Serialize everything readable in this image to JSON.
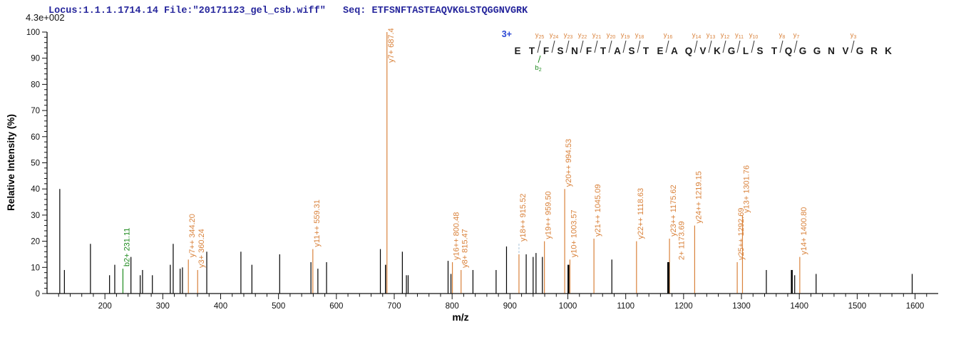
{
  "header": {
    "locus_file": "Locus:1.1.1.1714.14 File:\"20171123_gel_csb.wiff\"",
    "seq_label": "Seq:",
    "seq_value": "ETFSNFTASTEAQVKGLSTQGGNVGRK",
    "max_intensity": "4.3e+002"
  },
  "colors": {
    "annotation_orange": "#d9823b",
    "annotation_green": "#1e8a1e",
    "header_navy": "#26269c",
    "charge_blue": "#2a46d4",
    "peak_black": "#000000",
    "leader_blue": "#a9c3d9",
    "axis_black": "#111111",
    "residue_dark": "#1c1c1c"
  },
  "chart_data": {
    "type": "bar",
    "subtype": "ms2-fragment-spectrum",
    "xlabel": "m/z",
    "ylabel": "Relative  Intensity (%)",
    "xlim": [
      100,
      1640
    ],
    "ylim": [
      0,
      100
    ],
    "x_ticks": {
      "start": 200,
      "end": 1600,
      "step": 100,
      "minor_step": 20
    },
    "y_ticks": {
      "start": 0,
      "end": 100,
      "step": 10,
      "minor_step": 2
    },
    "grid": false,
    "annotated_peaks": [
      {
        "label": "b2+ 231.11",
        "mz": 231.11,
        "pct": 9.5,
        "color": "green"
      },
      {
        "label": "y7++ 344.20",
        "mz": 344.2,
        "pct": 13,
        "color": "orange"
      },
      {
        "label": "y3+ 360.24",
        "mz": 360.24,
        "pct": 9,
        "color": "orange"
      },
      {
        "label": "y11++ 559.31",
        "mz": 559.31,
        "pct": 17,
        "color": "orange"
      },
      {
        "label": "y7+ 687.4",
        "mz": 687.4,
        "pct": 100,
        "color": "orange",
        "base_peak": true
      },
      {
        "label": "y16++ 800.48",
        "mz": 800.48,
        "pct": 12,
        "color": "orange"
      },
      {
        "label": "y8+ 815.47",
        "mz": 815.47,
        "pct": 9,
        "color": "orange"
      },
      {
        "label": "y18++ 915.52",
        "mz": 915.52,
        "pct": 15,
        "color": "orange",
        "leader": 16
      },
      {
        "label": "y19++ 959.50",
        "mz": 959.5,
        "pct": 20,
        "color": "orange"
      },
      {
        "label": "y20++ 994.53",
        "mz": 994.53,
        "pct": 40,
        "color": "orange"
      },
      {
        "label": "y10+ 1003.57",
        "mz": 1003.57,
        "pct": 13,
        "color": "orange"
      },
      {
        "label": "y21++ 1045.09",
        "mz": 1045.09,
        "pct": 21,
        "color": "orange"
      },
      {
        "label": "y22++ 1118.63",
        "mz": 1118.63,
        "pct": 20,
        "color": "orange"
      },
      {
        "label": "y23++ 1175.62",
        "mz": 1175.62,
        "pct": 21,
        "color": "orange"
      },
      {
        "label": "2+ 1173.69",
        "mz": 1173.69,
        "pct": 12,
        "color": "orange",
        "peak_color": "black",
        "w": 3,
        "label_dx": 22
      },
      {
        "label": "y24++ 1219.15",
        "mz": 1219.15,
        "pct": 26,
        "color": "orange"
      },
      {
        "label": "y25++ 1292.69",
        "mz": 1292.69,
        "pct": 12,
        "color": "orange"
      },
      {
        "label": "y13+ 1301.76",
        "mz": 1301.76,
        "pct": 30,
        "color": "orange"
      },
      {
        "label": "y14+ 1400.80",
        "mz": 1400.8,
        "pct": 14,
        "color": "orange"
      }
    ],
    "unlabeled_peaks": [
      {
        "mz": 122,
        "pct": 40
      },
      {
        "mz": 130,
        "pct": 9
      },
      {
        "mz": 175,
        "pct": 19
      },
      {
        "mz": 208,
        "pct": 7
      },
      {
        "mz": 217,
        "pct": 11
      },
      {
        "mz": 245,
        "pct": 14
      },
      {
        "mz": 261,
        "pct": 7
      },
      {
        "mz": 265,
        "pct": 9
      },
      {
        "mz": 282,
        "pct": 7
      },
      {
        "mz": 313,
        "pct": 11
      },
      {
        "mz": 318,
        "pct": 19
      },
      {
        "mz": 330,
        "pct": 9.5
      },
      {
        "mz": 334,
        "pct": 10
      },
      {
        "mz": 376,
        "pct": 16
      },
      {
        "mz": 435,
        "pct": 16
      },
      {
        "mz": 454,
        "pct": 11
      },
      {
        "mz": 502,
        "pct": 15
      },
      {
        "mz": 556,
        "pct": 12
      },
      {
        "mz": 568,
        "pct": 9.5
      },
      {
        "mz": 583,
        "pct": 12
      },
      {
        "mz": 676,
        "pct": 17
      },
      {
        "mz": 685,
        "pct": 11,
        "w": 1.5
      },
      {
        "mz": 714,
        "pct": 16
      },
      {
        "mz": 721,
        "pct": 7
      },
      {
        "mz": 724,
        "pct": 7
      },
      {
        "mz": 793,
        "pct": 12.5
      },
      {
        "mz": 798,
        "pct": 7.5
      },
      {
        "mz": 836,
        "pct": 9
      },
      {
        "mz": 876,
        "pct": 9
      },
      {
        "mz": 894,
        "pct": 18
      },
      {
        "mz": 928,
        "pct": 15
      },
      {
        "mz": 940,
        "pct": 14
      },
      {
        "mz": 945,
        "pct": 15.5
      },
      {
        "mz": 956,
        "pct": 14
      },
      {
        "mz": 1001,
        "pct": 11,
        "w": 2.5
      },
      {
        "mz": 1076,
        "pct": 13
      },
      {
        "mz": 1343,
        "pct": 9
      },
      {
        "mz": 1387,
        "pct": 9,
        "w": 2.5
      },
      {
        "mz": 1392,
        "pct": 7
      },
      {
        "mz": 1429,
        "pct": 7.5
      },
      {
        "mz": 1595,
        "pct": 7.5
      }
    ],
    "peptide": {
      "charge": "3+",
      "residues": [
        "E",
        "T",
        "F",
        "S",
        "N",
        "F",
        "T",
        "A",
        "S",
        "T",
        "E",
        "A",
        "Q",
        "V",
        "K",
        "G",
        "L",
        "S",
        "T",
        "Q",
        "G",
        "G",
        "N",
        "V",
        "G",
        "R",
        "K"
      ],
      "y_ion_markers": [
        {
          "before_residue_index": 2,
          "label": "y",
          "sub": "25"
        },
        {
          "before_residue_index": 3,
          "label": "y",
          "sub": "24"
        },
        {
          "before_residue_index": 4,
          "label": "y",
          "sub": "23"
        },
        {
          "before_residue_index": 5,
          "label": "y",
          "sub": "22"
        },
        {
          "before_residue_index": 6,
          "label": "y",
          "sub": "21"
        },
        {
          "before_residue_index": 7,
          "label": "y",
          "sub": "20"
        },
        {
          "before_residue_index": 8,
          "label": "y",
          "sub": "19"
        },
        {
          "before_residue_index": 9,
          "label": "y",
          "sub": "18"
        },
        {
          "before_residue_index": 11,
          "label": "y",
          "sub": "16"
        },
        {
          "before_residue_index": 13,
          "label": "y",
          "sub": "14"
        },
        {
          "before_residue_index": 14,
          "label": "y",
          "sub": "13"
        },
        {
          "before_residue_index": 15,
          "label": "y",
          "sub": "12"
        },
        {
          "before_residue_index": 16,
          "label": "y",
          "sub": "11"
        },
        {
          "before_residue_index": 17,
          "label": "y",
          "sub": "10"
        },
        {
          "before_residue_index": 19,
          "label": "y",
          "sub": "8"
        },
        {
          "before_residue_index": 20,
          "label": "y",
          "sub": "7"
        },
        {
          "before_residue_index": 24,
          "label": "y",
          "sub": "3"
        }
      ],
      "b_ion_markers": [
        {
          "before_residue_index": 2,
          "label": "b",
          "sub": "2"
        }
      ]
    }
  }
}
